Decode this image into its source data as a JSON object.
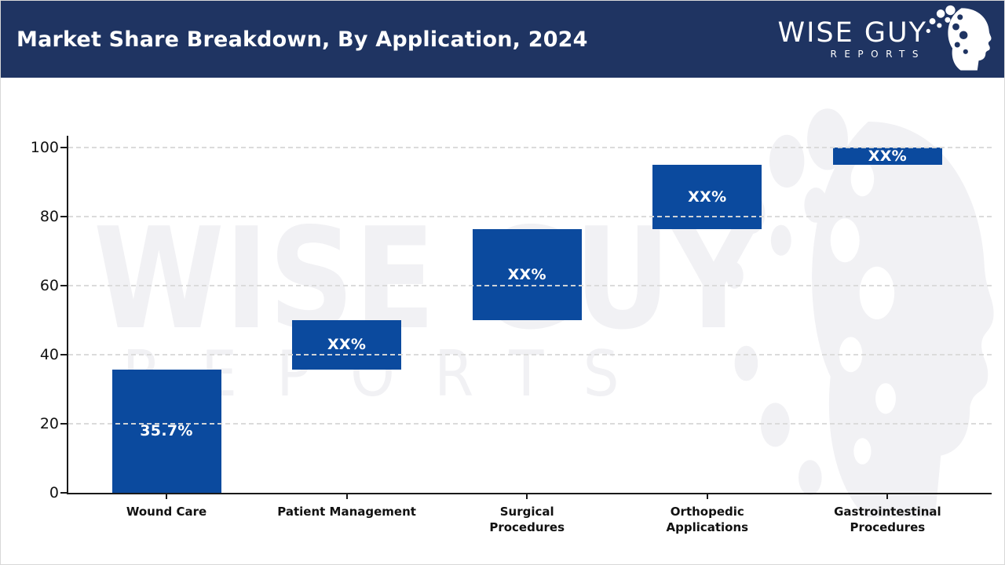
{
  "header": {
    "title": "Market Share Breakdown, By Application, 2024",
    "logo": {
      "line1": "WISE GUY",
      "line2": "REPORTS"
    }
  },
  "watermark": {
    "line1": "WISE GUY",
    "line2": "REPORTS"
  },
  "chart_data": {
    "type": "bar",
    "subtype": "waterfall",
    "title": "Market Share Breakdown, By Application, 2024",
    "categories": [
      "Wound Care",
      "Patient Management",
      "Surgical Procedures",
      "Orthopedic Applications",
      "Gastrointestinal Procedures"
    ],
    "category_lines": [
      [
        "Wound Care"
      ],
      [
        "Patient Management"
      ],
      [
        "Surgical",
        "Procedures"
      ],
      [
        "Orthopedic",
        "Applications"
      ],
      [
        "Gastrointestinal",
        "Procedures"
      ]
    ],
    "segments": [
      {
        "category": "Wound Care",
        "start": 0,
        "end": 35.7,
        "value": 35.7,
        "label": "35.7%"
      },
      {
        "category": "Patient Management",
        "start": 35.7,
        "end": 50,
        "value": 14.3,
        "label": "XX%"
      },
      {
        "category": "Surgical Procedures",
        "start": 50,
        "end": 76.3,
        "value": 26.3,
        "label": "XX%"
      },
      {
        "category": "Orthopedic Applications",
        "start": 76.3,
        "end": 95,
        "value": 18.7,
        "label": "XX%"
      },
      {
        "category": "Gastrointestinal Procedures",
        "start": 95,
        "end": 100,
        "value": 5,
        "label": "XX%"
      }
    ],
    "xlabel": "",
    "ylabel": "",
    "ylim": [
      0,
      100
    ],
    "y_ticks": [
      0,
      20,
      40,
      60,
      80,
      100
    ],
    "grid": "dashed-horizontal",
    "legend": "none",
    "colors": {
      "bar": "#0b4a9e",
      "bar_label": "#ffffff",
      "axis": "#1a1a1a",
      "gridline": "#d9d9d9",
      "header_bg": "#1f3462",
      "header_text": "#ffffff",
      "watermark": "#f1f1f4"
    }
  }
}
